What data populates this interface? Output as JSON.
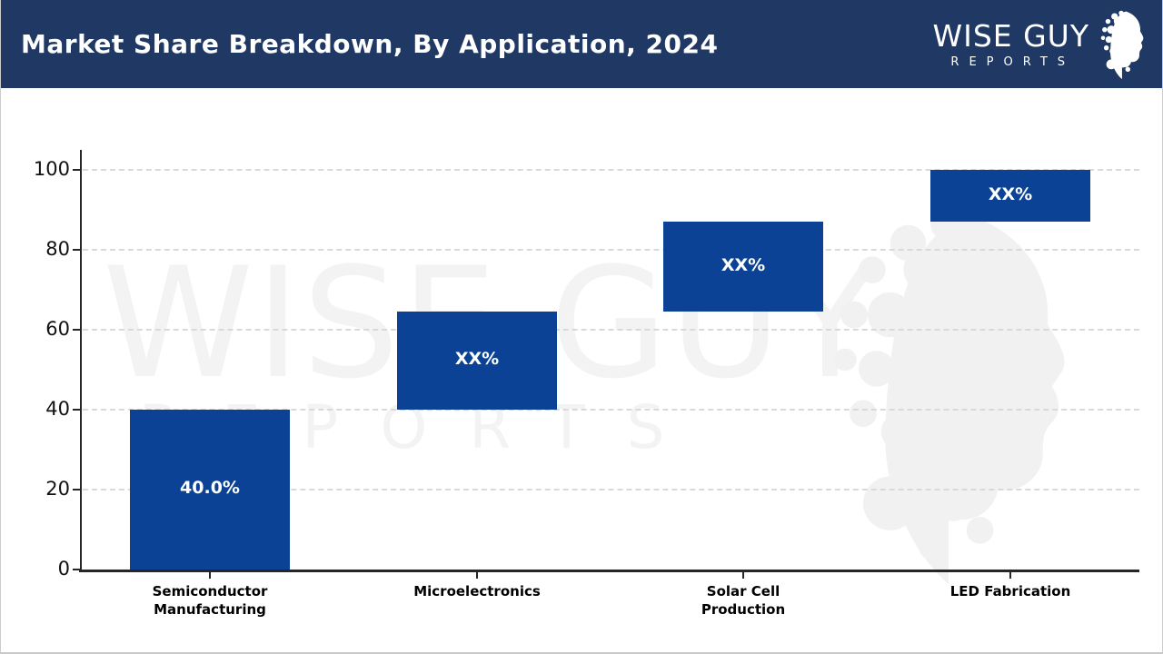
{
  "page": {
    "background": "#ffffff",
    "border_color": "#cccccc"
  },
  "header": {
    "background": "#1f3864",
    "title": "Market Share Breakdown, By Application, 2024",
    "title_color": "#ffffff",
    "logo": {
      "brand_top": "WISE GUY",
      "brand_bottom": "REPORTS"
    }
  },
  "watermark": {
    "brand_top": "WISE GUY",
    "brand_bottom": "REPORTS",
    "color": "#f3f3f3"
  },
  "chart_data": {
    "type": "bar",
    "subtype": "floating-segment-waterfall",
    "title": "Market Share Breakdown, By Application, 2024",
    "categories": [
      {
        "label": "Semiconductor Manufacturing",
        "lines": [
          "Semiconductor",
          "Manufacturing"
        ]
      },
      {
        "label": "Microelectronics",
        "lines": [
          "Microelectronics"
        ]
      },
      {
        "label": "Solar Cell Production",
        "lines": [
          "Solar Cell",
          "Production"
        ]
      },
      {
        "label": "LED Fabrication",
        "lines": [
          "LED Fabrication"
        ]
      }
    ],
    "segments": [
      {
        "start": 0,
        "end": 40,
        "value_label": "40.0%"
      },
      {
        "start": 40,
        "end": 64.5,
        "value_label": "XX%"
      },
      {
        "start": 64.5,
        "end": 87,
        "value_label": "XX%"
      },
      {
        "start": 87,
        "end": 100,
        "value_label": "XX%"
      }
    ],
    "yticks": [
      0,
      20,
      40,
      60,
      80,
      100
    ],
    "ylim": [
      0,
      105
    ],
    "grid": "horizontal-dashed",
    "legend": "none",
    "bar_color": "#0b4296",
    "bar_label_color": "#ffffff",
    "axis_color": "#262626",
    "grid_color": "#d9d9d9",
    "tick_label_color": "#111111"
  }
}
